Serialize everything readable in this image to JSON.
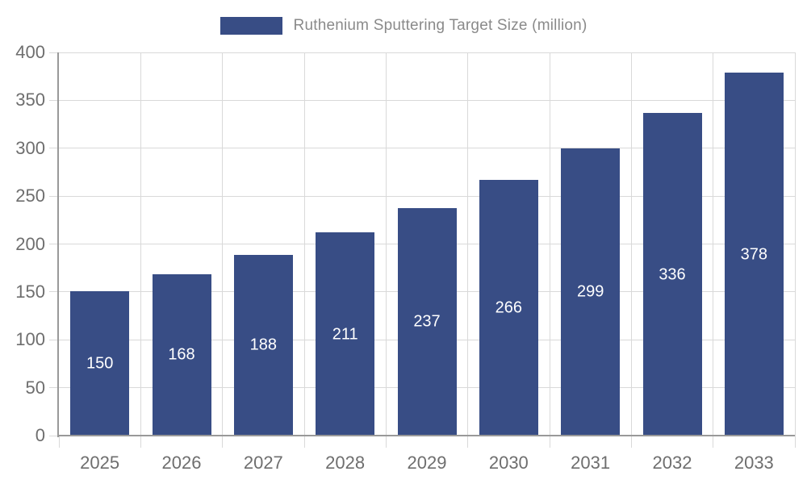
{
  "chart_data": {
    "type": "bar",
    "title": "Ruthenium Sputtering Target Size (million)",
    "legend": {
      "entries": [
        "Ruthenium Sputtering Target Size (million)"
      ],
      "position": "top"
    },
    "categories": [
      "2025",
      "2026",
      "2027",
      "2028",
      "2029",
      "2030",
      "2031",
      "2032",
      "2033"
    ],
    "series": [
      {
        "name": "Ruthenium Sputtering Target Size (million)",
        "values": [
          150,
          168,
          188,
          211,
          237,
          266,
          299,
          336,
          378
        ]
      }
    ],
    "value_labels": [
      150,
      168,
      188,
      211,
      237,
      266,
      299,
      336,
      378
    ],
    "xlabel": "",
    "ylabel": "",
    "ylim": [
      0,
      400
    ],
    "ytick_step": 50,
    "ytick_labels": [
      "0",
      "50",
      "100",
      "150",
      "200",
      "250",
      "300",
      "350",
      "400"
    ],
    "grid": true,
    "colors": {
      "bar": "#384d85",
      "grid": "#d9d9d9",
      "axis": "#999999",
      "tick": "#d9d9d9",
      "axis_label_text": "#6e6e6e",
      "legend_text": "#8a8a8a",
      "value_label_text": "#ffffff",
      "background": "#ffffff"
    }
  }
}
